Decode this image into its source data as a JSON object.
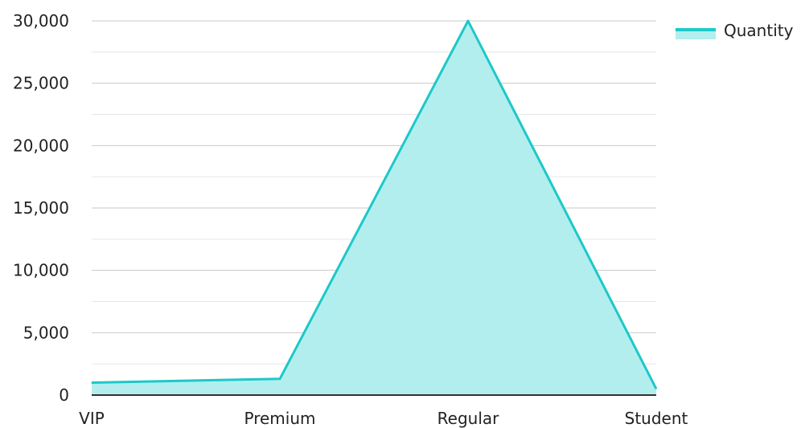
{
  "chart_data": {
    "type": "area",
    "categories": [
      "VIP",
      "Premium",
      "Regular",
      "Student"
    ],
    "series": [
      {
        "name": "Quantity",
        "values": [
          1000,
          1300,
          30000,
          500
        ]
      }
    ],
    "ylim": [
      0,
      30000
    ],
    "y_ticks": [
      "0",
      "5,000",
      "10,000",
      "15,000",
      "20,000",
      "25,000",
      "30,000"
    ],
    "y_tick_values": [
      0,
      5000,
      10000,
      15000,
      20000,
      25000,
      30000
    ],
    "grid": true,
    "legend_position": "top-right",
    "colors": {
      "line": "#1ec8c8",
      "fill": "#b2eeee",
      "grid_major": "#c8c8c8",
      "grid_minor": "#e6e6e6",
      "axis": "#333333"
    }
  }
}
